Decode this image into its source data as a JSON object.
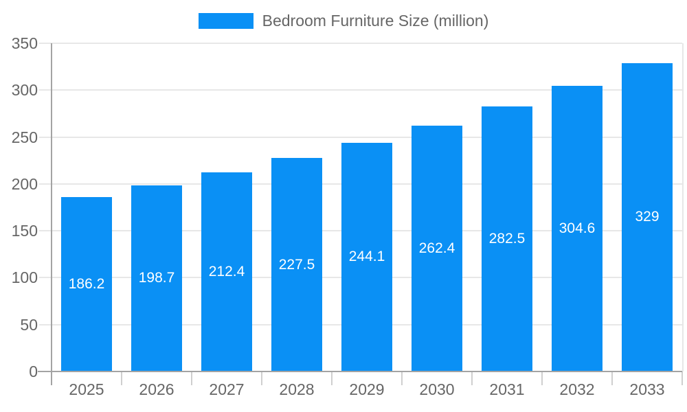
{
  "legend": {
    "label": "Bedroom Furniture Size (million)"
  },
  "chart_data": {
    "type": "bar",
    "title": "Bedroom Furniture Size (million)",
    "series_name": "Bedroom Furniture Size (million)",
    "categories": [
      "2025",
      "2026",
      "2027",
      "2028",
      "2029",
      "2030",
      "2031",
      "2032",
      "2033"
    ],
    "values": [
      186.2,
      198.7,
      212.4,
      227.5,
      244.1,
      262.4,
      282.5,
      304.6,
      329
    ],
    "xlabel": "",
    "ylabel": "",
    "ylim": [
      0,
      350
    ],
    "yticks": [
      0,
      50,
      100,
      150,
      200,
      250,
      300,
      350
    ],
    "grid": true,
    "legend_position": "top-center",
    "value_labels": "inside-center",
    "colors": {
      "bar": "#0a90f5",
      "bar_value_text": "#ffffff",
      "axis_text": "#666666",
      "axis_line": "#a3a3a3",
      "gridline": "#e7e7e7",
      "category_tick": "#cfcfcf",
      "background": "#ffffff"
    }
  }
}
